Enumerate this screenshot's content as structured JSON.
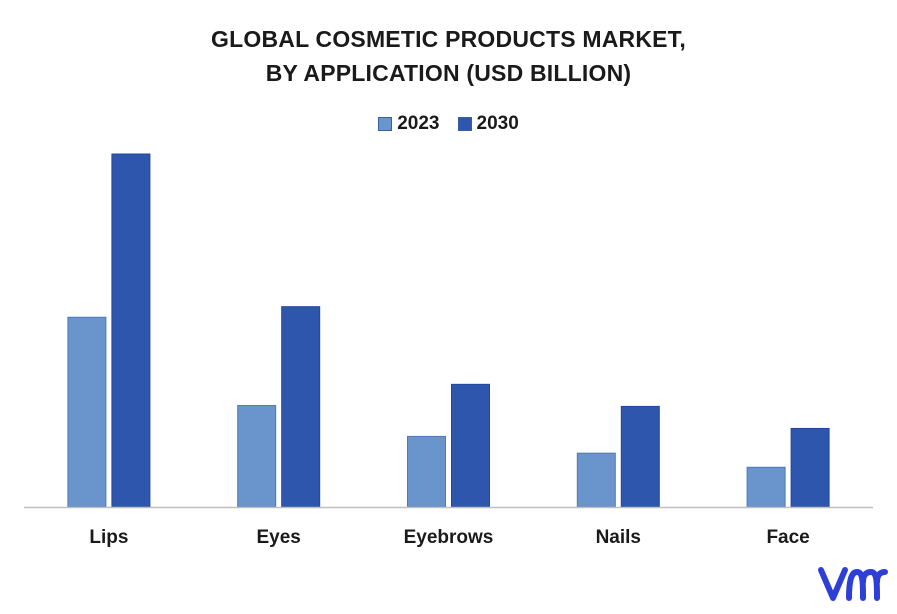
{
  "chart_data": {
    "type": "bar",
    "title": "GLOBAL COSMETIC PRODUCTS MARKET, BY APPLICATION (USD BILLION)",
    "title_lines": [
      "GLOBAL COSMETIC PRODUCTS MARKET,",
      "BY APPLICATION (USD BILLION)"
    ],
    "categories": [
      "Lips",
      "Eyes",
      "Eyebrows",
      "Nails",
      "Face"
    ],
    "series": [
      {
        "name": "2023",
        "color": "#6a94cc",
        "values": [
          21.5,
          11.5,
          8.0,
          6.1,
          4.5
        ]
      },
      {
        "name": "2030",
        "color": "#2e56ad",
        "values": [
          40.0,
          22.7,
          13.9,
          11.4,
          8.9
        ]
      }
    ],
    "ylim": [
      0,
      40
    ],
    "legend_position": "top-center",
    "grid": false,
    "xlabel": "",
    "ylabel": ""
  },
  "brand": {
    "logo_icon": "vmr-logo-icon",
    "logo_color": "#2d3fd6"
  }
}
